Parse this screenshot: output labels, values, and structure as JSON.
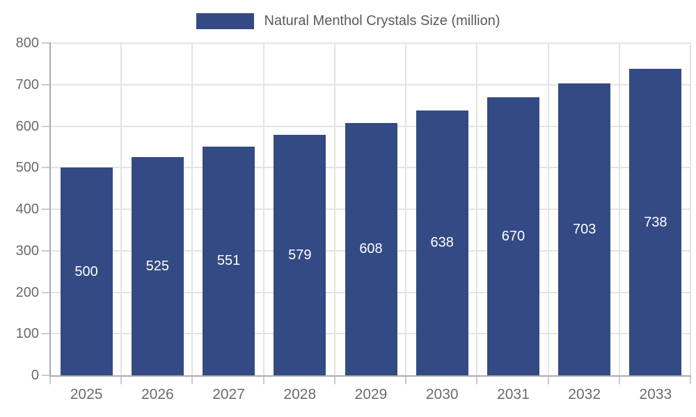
{
  "chart_data": {
    "type": "bar",
    "title": "",
    "legend_label": "Natural Menthol Crystals Size (million)",
    "legend_position": "top-center",
    "categories": [
      "2025",
      "2026",
      "2027",
      "2028",
      "2029",
      "2030",
      "2031",
      "2032",
      "2033"
    ],
    "values": [
      500,
      525,
      551,
      579,
      608,
      638,
      670,
      703,
      738
    ],
    "yticks": [
      0,
      100,
      200,
      300,
      400,
      500,
      600,
      700,
      800
    ],
    "ylim": [
      0,
      800
    ],
    "xlabel": "",
    "ylabel": "",
    "grid": true,
    "value_labels": "inside-center",
    "colors": {
      "bar": "#344a84",
      "axis": "#a9a9a9",
      "tick": "#cccccc",
      "grid": "#e3e3e3",
      "value_label_text": "#ffffff",
      "axis_text": "#6b6b6b",
      "legend_text": "#5a5a5a"
    }
  }
}
